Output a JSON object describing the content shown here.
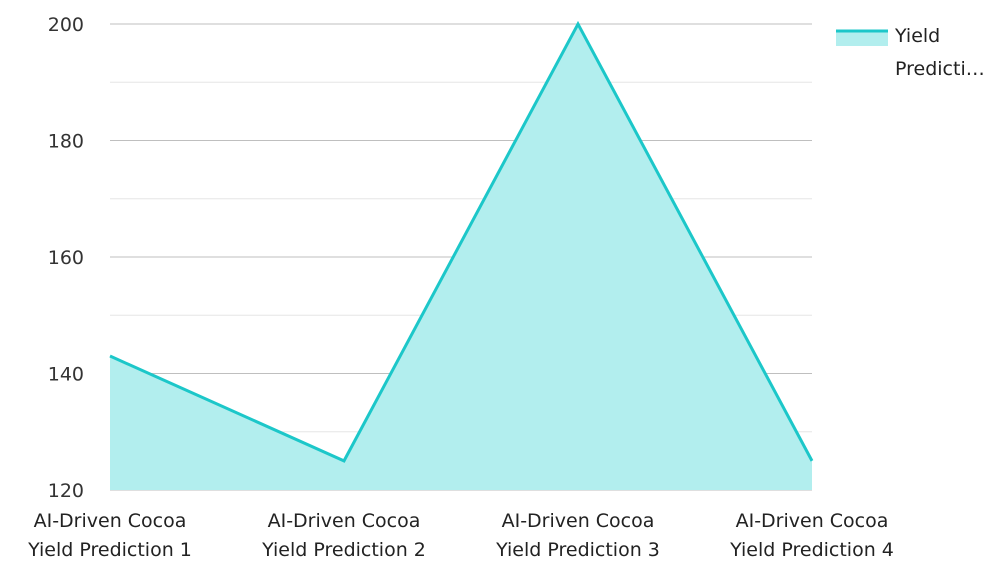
{
  "chart_data": {
    "type": "area",
    "categories": [
      [
        "AI-Driven Cocoa",
        "Yield Prediction 1"
      ],
      [
        "AI-Driven Cocoa",
        "Yield Prediction 2"
      ],
      [
        "AI-Driven Cocoa",
        "Yield Prediction 3"
      ],
      [
        "AI-Driven Cocoa",
        "Yield Prediction 4"
      ]
    ],
    "series": [
      {
        "name": "Yield Predicti…",
        "values": [
          143,
          125,
          200,
          125
        ]
      }
    ],
    "ylim": [
      120,
      200
    ],
    "yticks": [
      120,
      140,
      160,
      180,
      200
    ],
    "minor_yticks": [
      130,
      150,
      170,
      190
    ],
    "grid": true,
    "legend_position": "top-right",
    "legend_lines": [
      "Yield",
      "Predicti…"
    ],
    "colors": {
      "line": "#1cc7c9",
      "fill": "#b2eeee",
      "grid": "#bfbfbf",
      "minor_grid": "#e6e6e6"
    }
  }
}
